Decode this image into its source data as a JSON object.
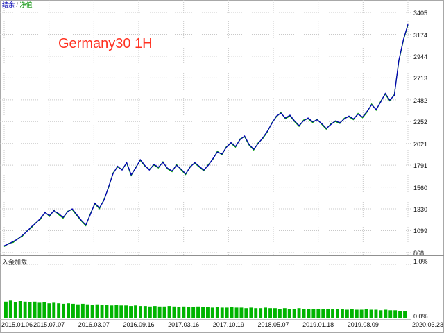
{
  "window": {
    "title": "Strategy Tester Graph"
  },
  "legend": {
    "balance_label": "结余",
    "separator": " / ",
    "equity_label": "净值",
    "balance_color": "#0000b4",
    "equity_color": "#00a000"
  },
  "annotation": {
    "text": "Germany30 1H",
    "color": "#ff3020"
  },
  "colors": {
    "grid": "#c8c8c8",
    "balance_line": "#0000b4",
    "equity_line": "#00a000",
    "bars": "#00b400"
  },
  "chart_data": {
    "type": "line",
    "title": "Germany30 1H",
    "x_labels": [
      "2015.01.06",
      "2015.07.07",
      "2016.03.07",
      "2016.09.16",
      "2017.03.16",
      "2017.10.19",
      "2018.05.07",
      "2019.01.18",
      "2019.08.09",
      "2020.03.23"
    ],
    "y_ticks": [
      3405,
      3174,
      2944,
      2713,
      2482,
      2252,
      2021,
      1791,
      1560,
      1330,
      1099,
      868
    ],
    "ylim": [
      868,
      3405
    ],
    "grid": true,
    "legend_position": "top-left",
    "series": [
      {
        "name": "净值",
        "color": "#00a000",
        "values": [
          930,
          965,
          975,
          1015,
          1040,
          1095,
          1130,
          1185,
          1220,
          1295,
          1250,
          1315,
          1270,
          1232,
          1305,
          1322,
          1260,
          1202,
          1152,
          1278,
          1382,
          1332,
          1428,
          1552,
          1708,
          1772,
          1748,
          1812,
          1682,
          1768,
          1842,
          1782,
          1748,
          1792,
          1762,
          1828,
          1752,
          1722,
          1798,
          1742,
          1692,
          1778,
          1812,
          1772,
          1732,
          1798,
          1852,
          1938,
          1902,
          1988,
          2022,
          1982,
          2068,
          2092,
          2002,
          1952,
          2028,
          2072,
          2142,
          2238,
          2302,
          2348,
          2282,
          2312,
          2252,
          2202,
          2268,
          2282,
          2242,
          2278,
          2222,
          2172,
          2228,
          2252,
          2232,
          2288,
          2302,
          2272,
          2338,
          2292,
          2352,
          2438,
          2372,
          2468,
          2542,
          2472,
          2538,
          2892,
          3112,
          3272
        ]
      },
      {
        "name": "结余",
        "color": "#0000b4",
        "values": [
          940,
          960,
          985,
          1010,
          1050,
          1090,
          1140,
          1180,
          1230,
          1290,
          1260,
          1310,
          1280,
          1240,
          1300,
          1330,
          1270,
          1210,
          1160,
          1270,
          1390,
          1340,
          1420,
          1560,
          1700,
          1780,
          1740,
          1820,
          1690,
          1760,
          1850,
          1790,
          1740,
          1800,
          1770,
          1820,
          1760,
          1730,
          1790,
          1750,
          1700,
          1770,
          1820,
          1780,
          1740,
          1790,
          1860,
          1930,
          1910,
          1980,
          2030,
          1990,
          2060,
          2100,
          2010,
          1960,
          2020,
          2080,
          2150,
          2230,
          2310,
          2340,
          2290,
          2320,
          2260,
          2210,
          2260,
          2290,
          2250,
          2270,
          2230,
          2180,
          2220,
          2260,
          2240,
          2280,
          2310,
          2280,
          2330,
          2300,
          2360,
          2430,
          2380,
          2460,
          2550,
          2480,
          2530,
          2900,
          3120,
          3280
        ]
      }
    ],
    "sub_chart": {
      "label": "入金加载",
      "type": "bar",
      "color": "#00b400",
      "ylim": [
        0,
        1.0
      ],
      "y_tick_labels": [
        "1.0%",
        "0.0%"
      ],
      "values": [
        0.31,
        0.33,
        0.3,
        0.32,
        0.31,
        0.3,
        0.31,
        0.29,
        0.3,
        0.28,
        0.29,
        0.28,
        0.27,
        0.28,
        0.27,
        0.26,
        0.27,
        0.26,
        0.25,
        0.26,
        0.25,
        0.25,
        0.24,
        0.25,
        0.24,
        0.24,
        0.23,
        0.24,
        0.23,
        0.23,
        0.22,
        0.23,
        0.22,
        0.22,
        0.23,
        0.22,
        0.21,
        0.22,
        0.21,
        0.21,
        0.22,
        0.21,
        0.21,
        0.2,
        0.21,
        0.2,
        0.2,
        0.21,
        0.2,
        0.2,
        0.19,
        0.2,
        0.19,
        0.19,
        0.2,
        0.19,
        0.19,
        0.18,
        0.19,
        0.18,
        0.18,
        0.19,
        0.18,
        0.18,
        0.17,
        0.18,
        0.17,
        0.17,
        0.18,
        0.17,
        0.17,
        0.16,
        0.17,
        0.16,
        0.16,
        0.17,
        0.16,
        0.16,
        0.15,
        0.16,
        0.15,
        0.15,
        0.14,
        0.13
      ]
    }
  }
}
